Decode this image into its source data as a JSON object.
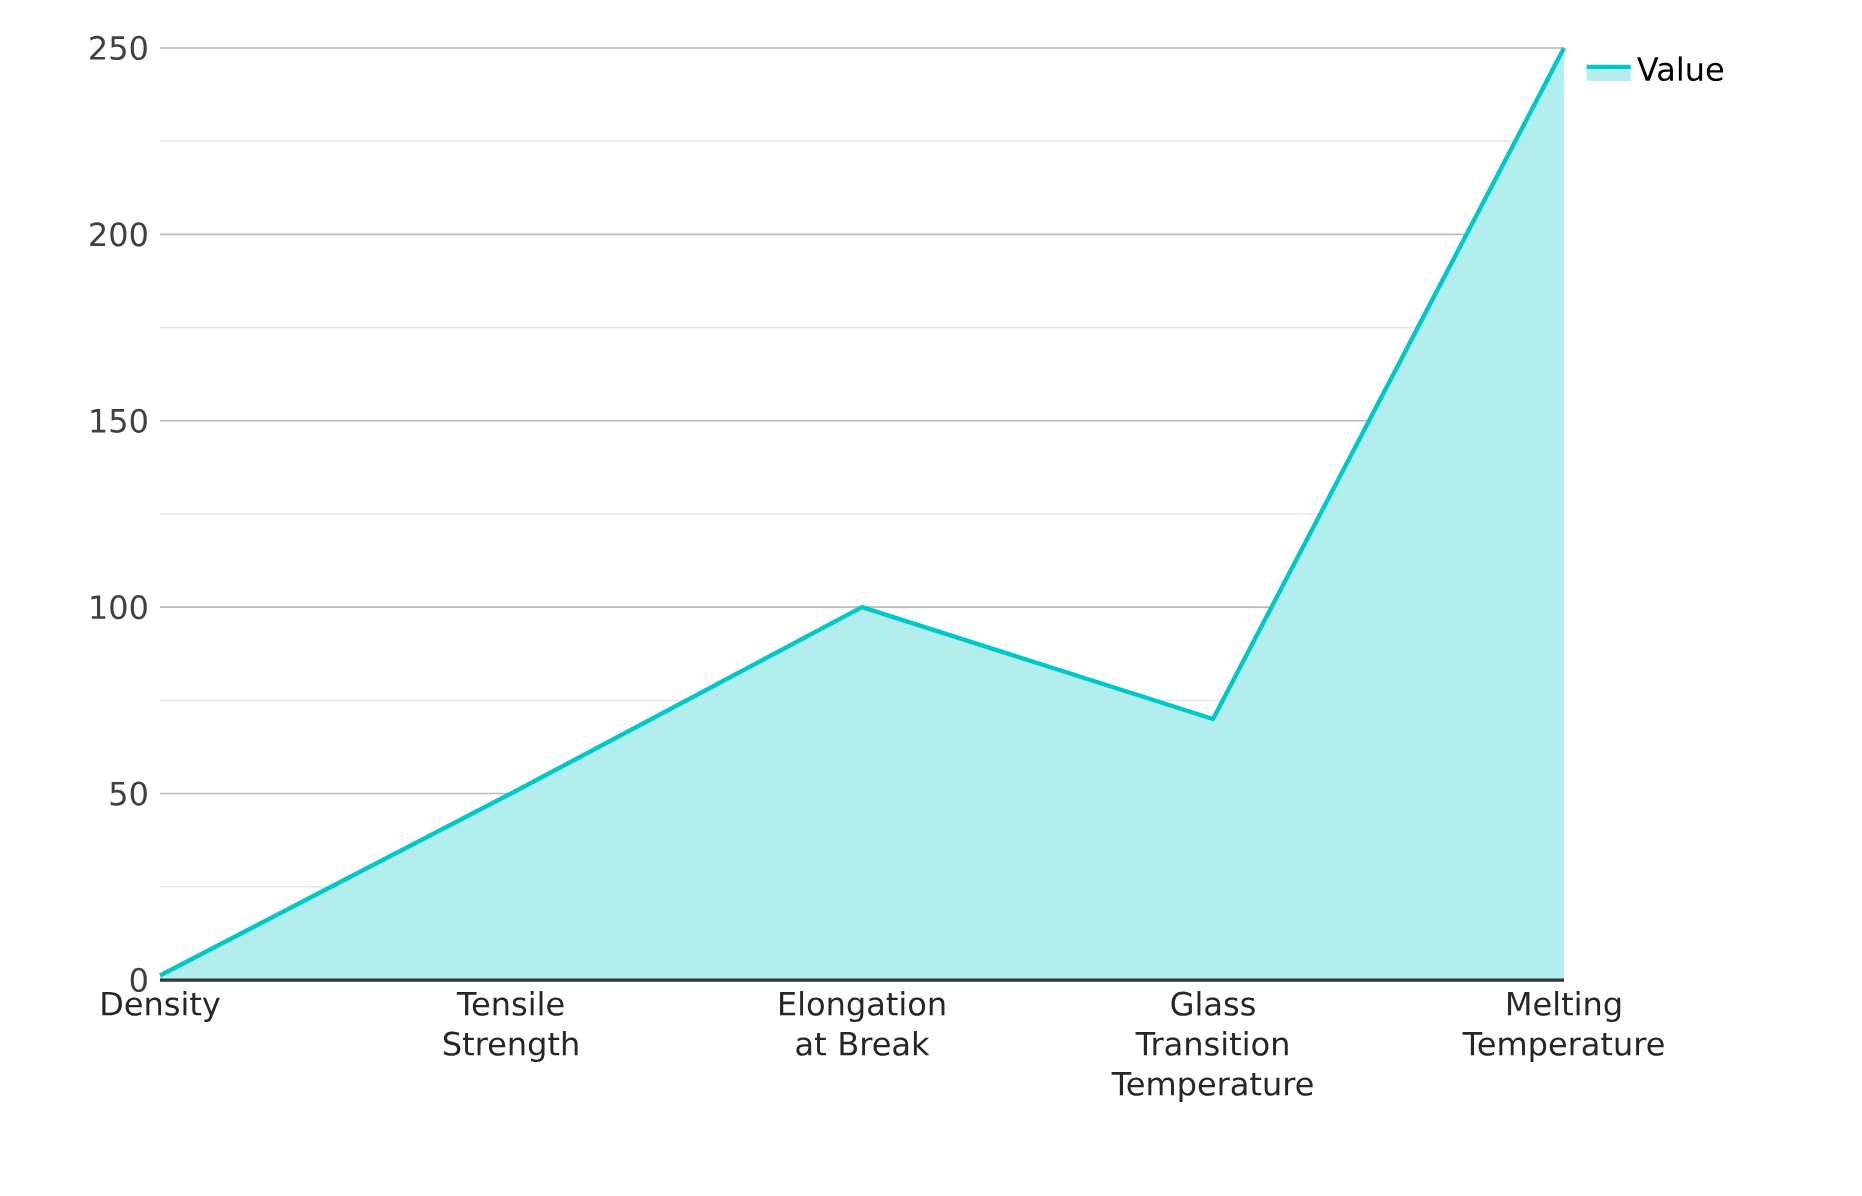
{
  "chart_data": {
    "type": "area",
    "categories": [
      "Density",
      "Tensile Strength",
      "Elongation at Break",
      "Glass Transition Temperature",
      "Melting Temperature"
    ],
    "series": [
      {
        "name": "Value",
        "color": "#00c8c8",
        "values": [
          1.2,
          50,
          100,
          70,
          250
        ]
      }
    ],
    "ylim": [
      0,
      250
    ],
    "yticks": [
      0,
      {
        "value": 25,
        "label": null
      },
      50,
      {
        "value": 75,
        "label": null
      },
      100,
      {
        "value": 125,
        "label": null
      },
      150,
      {
        "value": 175,
        "label": null
      },
      200,
      {
        "value": 225,
        "label": null
      },
      250
    ],
    "grid": "y",
    "legend": "top right"
  }
}
